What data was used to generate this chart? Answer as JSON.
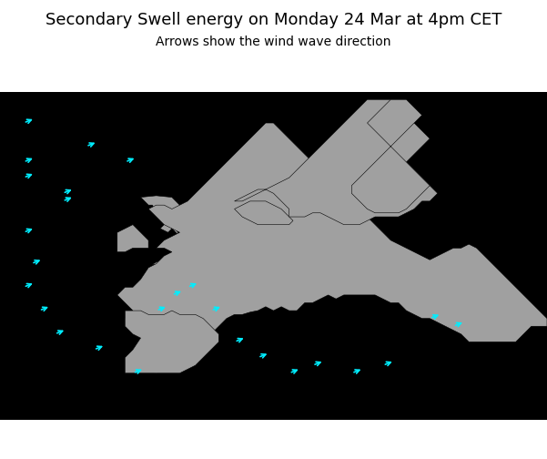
{
  "title": "Secondary Swell energy on Monday 24 Mar at 4pm CET",
  "subtitle": "Arrows show the wind wave direction",
  "title_fontsize": 13,
  "subtitle_fontsize": 10,
  "title_color": "#000000",
  "background_color": "#ffffff",
  "ocean_color": "#000000",
  "land_color": "#a0a0a0",
  "border_color": "#000000",
  "arrow_color": "#00eeff",
  "map_extent": [
    -25,
    45,
    30,
    72
  ],
  "ocean_arrows": [
    [
      -22,
      68
    ],
    [
      -14,
      65
    ],
    [
      -9,
      63
    ],
    [
      -22,
      61
    ],
    [
      -17,
      58
    ],
    [
      -22,
      54
    ],
    [
      -21,
      50
    ],
    [
      -22,
      47
    ],
    [
      -20,
      44
    ],
    [
      -18,
      41
    ],
    [
      -13,
      39
    ],
    [
      -8,
      36
    ],
    [
      -5,
      44
    ],
    [
      -3,
      46
    ],
    [
      5,
      40
    ],
    [
      8,
      38
    ],
    [
      12,
      36
    ],
    [
      15,
      37
    ],
    [
      20,
      36
    ],
    [
      24,
      37
    ],
    [
      30,
      43
    ],
    [
      33,
      42
    ],
    [
      -22,
      63
    ],
    [
      -17,
      59
    ],
    [
      -1,
      47
    ],
    [
      2,
      44
    ]
  ]
}
